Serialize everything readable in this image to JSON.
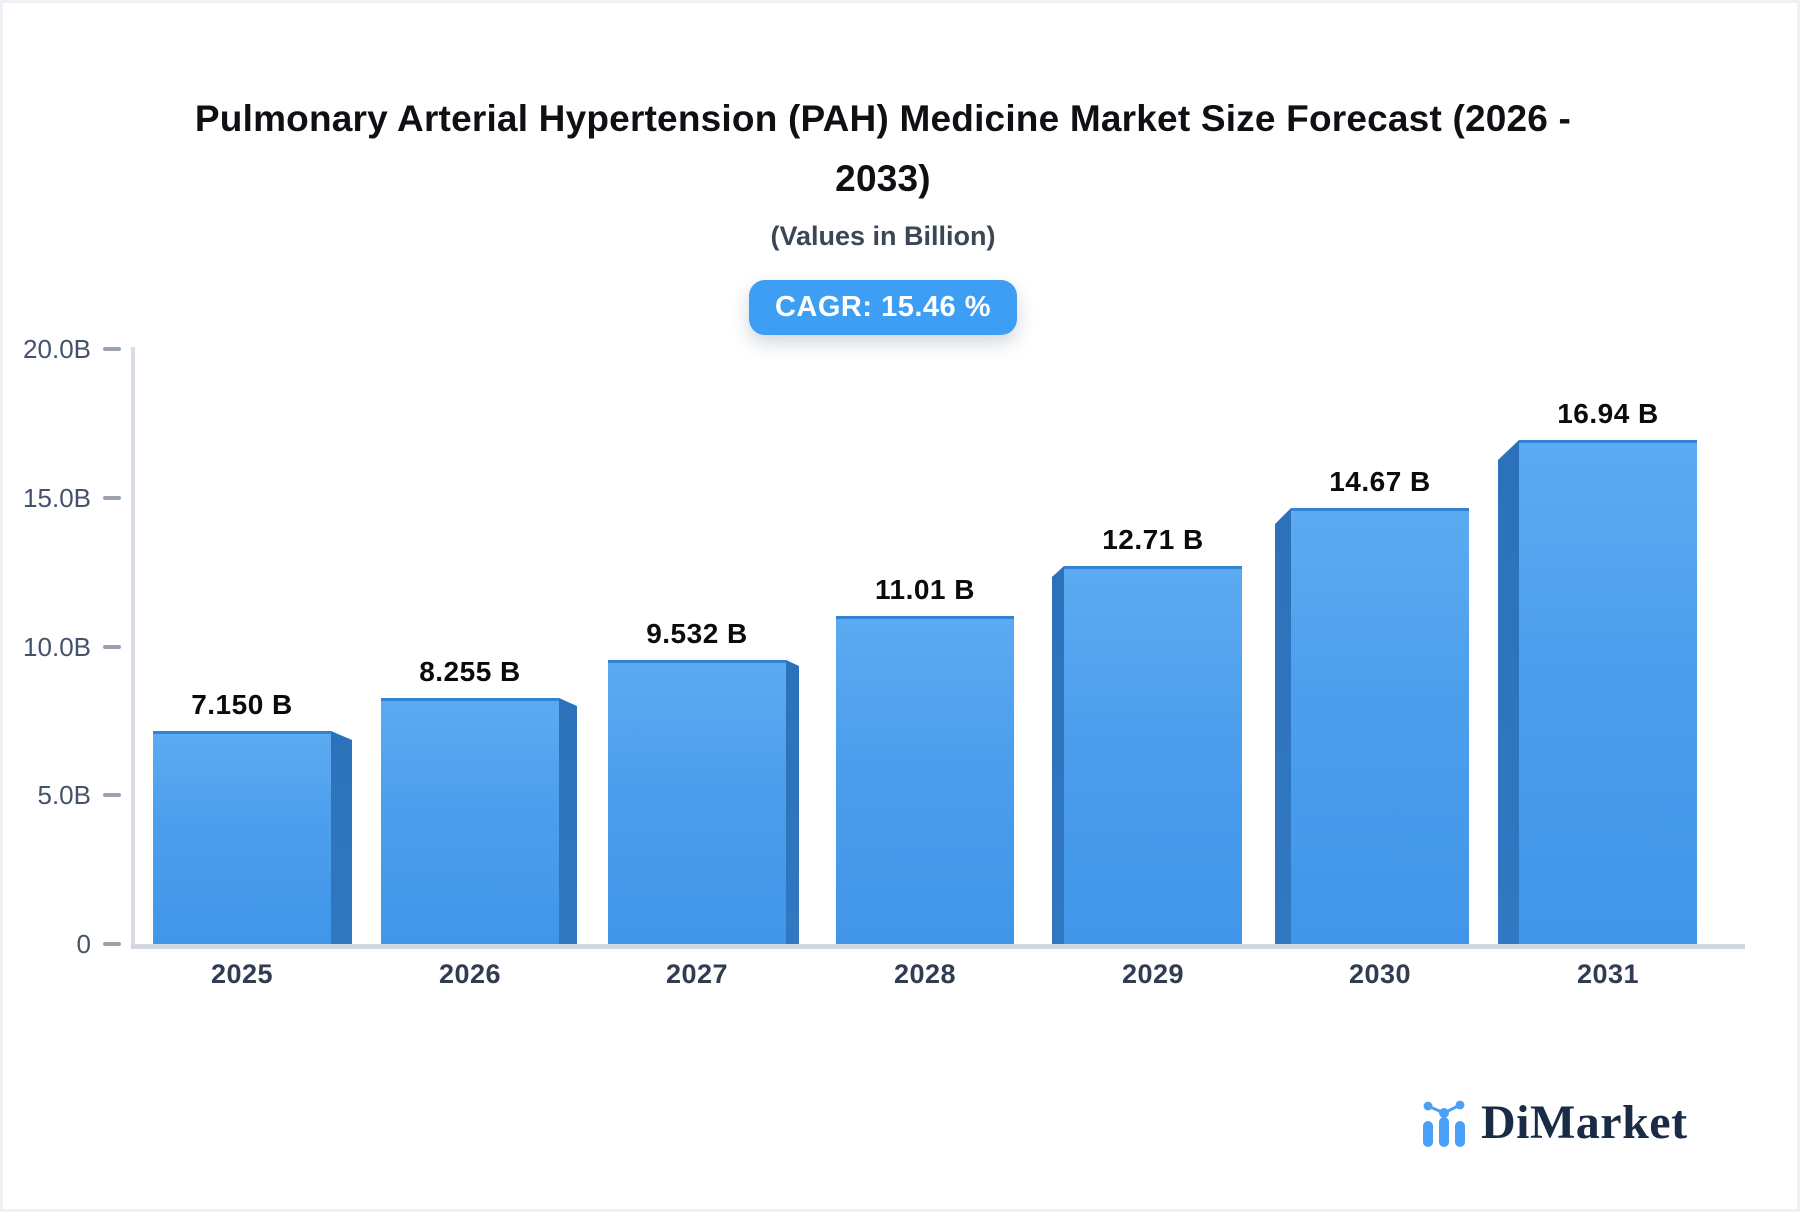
{
  "header": {
    "title_line1": "Pulmonary Arterial Hypertension (PAH) Medicine Market Size Forecast (2026 -",
    "title_line2": "2033)",
    "subtitle": "(Values in Billion)",
    "cagr_badge": "CAGR: 15.46 %"
  },
  "chart_data": {
    "type": "bar",
    "title": "Pulmonary Arterial Hypertension (PAH) Medicine Market Size Forecast (2026 - 2033)",
    "subtitle": "(Values in Billion)",
    "annotation": "CAGR: 15.46 %",
    "categories": [
      "2025",
      "2026",
      "2027",
      "2028",
      "2029",
      "2030",
      "2031"
    ],
    "values": [
      7.15,
      8.255,
      9.532,
      11.01,
      12.71,
      14.67,
      16.94
    ],
    "value_labels": [
      "7.150 B",
      "8.255 B",
      "9.532 B",
      "11.01 B",
      "12.71 B",
      "14.67 B",
      "16.94 B"
    ],
    "y_tick_values": [
      0,
      5,
      10,
      15,
      20
    ],
    "y_tick_labels": [
      "0",
      "5.0B",
      "10.0B",
      "15.0B",
      "20.0B"
    ],
    "ylim": [
      0,
      20
    ],
    "xlabel": "",
    "ylabel": "",
    "grid": false,
    "legend_position": "none",
    "bar_color": "#4A9DEB",
    "bar_side_color": "#2E76BF",
    "badge_color": "#3D9EF4"
  },
  "footer": {
    "brand": "DiMarket"
  }
}
